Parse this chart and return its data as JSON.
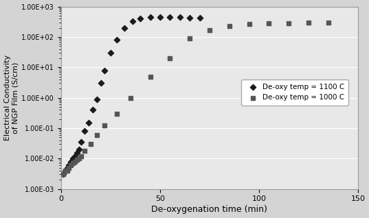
{
  "series_1100_x": [
    1,
    2,
    3,
    4,
    5,
    6,
    7,
    8,
    9,
    10,
    12,
    14,
    16,
    18,
    20,
    22,
    25,
    28,
    32,
    36,
    40,
    45,
    50,
    55,
    60,
    65,
    70
  ],
  "series_1100_y": [
    0.003,
    0.004,
    0.005,
    0.006,
    0.008,
    0.01,
    0.012,
    0.015,
    0.02,
    0.035,
    0.08,
    0.15,
    0.4,
    0.9,
    3.0,
    8.0,
    30.0,
    80.0,
    200.0,
    320.0,
    400.0,
    450.0,
    460.0,
    450.0,
    440.0,
    435.0,
    430.0
  ],
  "series_1000_x": [
    1,
    2,
    3,
    4,
    5,
    6,
    7,
    8,
    9,
    10,
    12,
    15,
    18,
    22,
    28,
    35,
    45,
    55,
    65,
    75,
    85,
    95,
    105,
    115,
    125,
    135
  ],
  "series_1000_y": [
    0.003,
    0.004,
    0.004,
    0.005,
    0.006,
    0.007,
    0.008,
    0.009,
    0.01,
    0.012,
    0.018,
    0.03,
    0.06,
    0.12,
    0.3,
    1.0,
    5.0,
    20.0,
    90.0,
    170.0,
    230.0,
    260.0,
    275.0,
    285.0,
    290.0,
    295.0
  ],
  "xlabel": "De-oxygenation time (min)",
  "ylabel": "Electrical Conductivity\nof NGP Film (S/cm)",
  "legend_1100": "De-oxy temp = 1100 C",
  "legend_1000": "De-oxy temp = 1000 C",
  "xlim": [
    0,
    150
  ],
  "xticks": [
    0,
    50,
    100,
    150
  ],
  "yticks_vals": [
    0.001,
    0.01,
    0.1,
    1.0,
    10.0,
    100.0,
    1000.0
  ],
  "yticks_labels": [
    "1.00E-03",
    "1.00E-02",
    "1.00E-01",
    "1.00E+00",
    "1.00E+01",
    "1.00E+02",
    "1.00E+03"
  ],
  "bg_color": "#d4d4d4",
  "plot_bg_color": "#e8e8e8",
  "color_1100": "#1a1a1a",
  "color_1000": "#555555",
  "marker_size": 18
}
